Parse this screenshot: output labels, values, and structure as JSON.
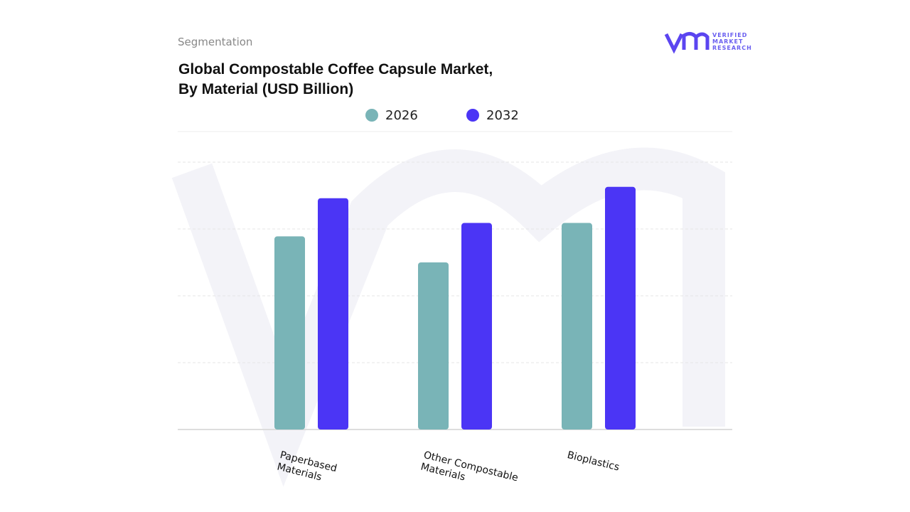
{
  "chart_data": {
    "type": "bar",
    "header": "Segmentation",
    "title_lines": [
      "Global Compostable Coffee Capsule Market,",
      "By Material (USD Billion)"
    ],
    "logo_lines": [
      "VERIFIED",
      "MARKET",
      "RESEARCH"
    ],
    "categories": [
      "Paperbased Materials",
      "Other Compostable Materials",
      "Bioplastics"
    ],
    "series": [
      {
        "name": "2026",
        "color": "#79b4b7",
        "values": [
          2.89,
          2.5,
          3.09
        ]
      },
      {
        "name": "2032",
        "color": "#4b35f5",
        "values": [
          3.46,
          3.09,
          3.63
        ]
      }
    ],
    "ylim": [
      0,
      4
    ],
    "yticks": [
      0,
      1,
      2,
      3,
      4
    ],
    "grid": true
  }
}
